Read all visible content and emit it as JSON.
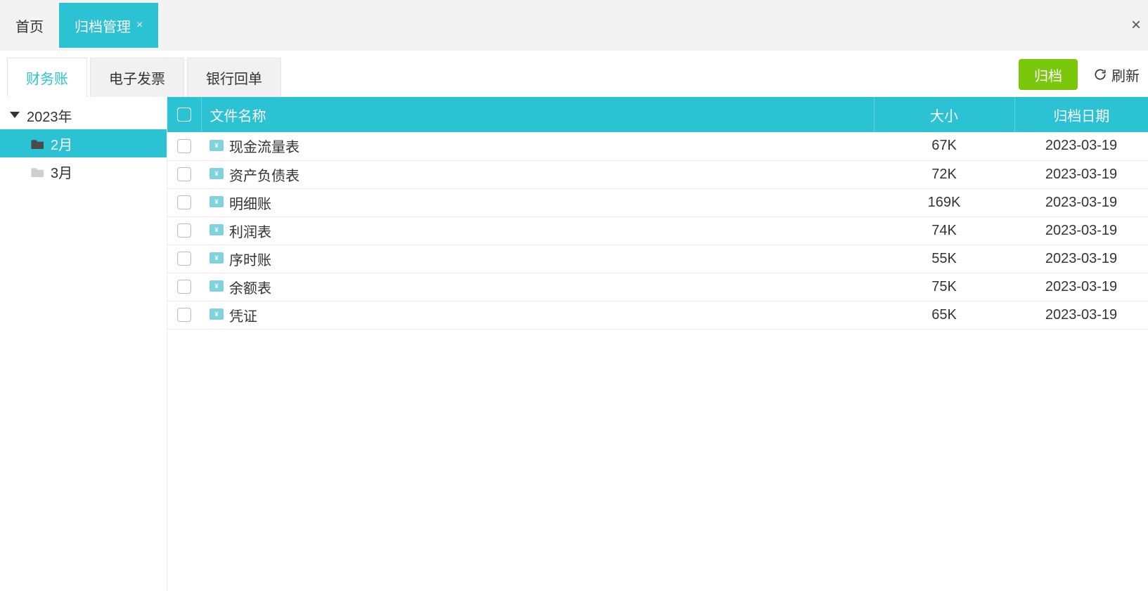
{
  "colors": {
    "accent": "#2bc2d4",
    "primary_btn": "#7ac70c",
    "top_bg": "#f3f3f3",
    "border": "#e7e7e7",
    "file_icon": "#7fd3df"
  },
  "page_tabs": {
    "items": [
      {
        "label": "首页",
        "closable": false,
        "active": false
      },
      {
        "label": "归档管理",
        "closable": true,
        "active": true
      }
    ],
    "close_glyph": "×"
  },
  "right_controls": {
    "close_label": "×"
  },
  "sub_tabs": {
    "items": [
      {
        "label": "财务账",
        "active": true
      },
      {
        "label": "电子发票",
        "active": false
      },
      {
        "label": "银行回单",
        "active": false
      }
    ]
  },
  "toolbar": {
    "archive_label": "归档",
    "refresh_label": "刷新"
  },
  "tree": {
    "year_label": "2023年",
    "months": [
      {
        "label": "2月",
        "active": true
      },
      {
        "label": "3月",
        "active": false
      }
    ]
  },
  "table": {
    "columns": {
      "name": "文件名称",
      "size": "大小",
      "date": "归档日期"
    },
    "rows": [
      {
        "name": "现金流量表",
        "size": "67K",
        "date": "2023-03-19"
      },
      {
        "name": "资产负债表",
        "size": "72K",
        "date": "2023-03-19"
      },
      {
        "name": "明细账",
        "size": "169K",
        "date": "2023-03-19"
      },
      {
        "name": "利润表",
        "size": "74K",
        "date": "2023-03-19"
      },
      {
        "name": "序时账",
        "size": "55K",
        "date": "2023-03-19"
      },
      {
        "name": "余额表",
        "size": "75K",
        "date": "2023-03-19"
      },
      {
        "name": "凭证",
        "size": "65K",
        "date": "2023-03-19"
      }
    ]
  }
}
